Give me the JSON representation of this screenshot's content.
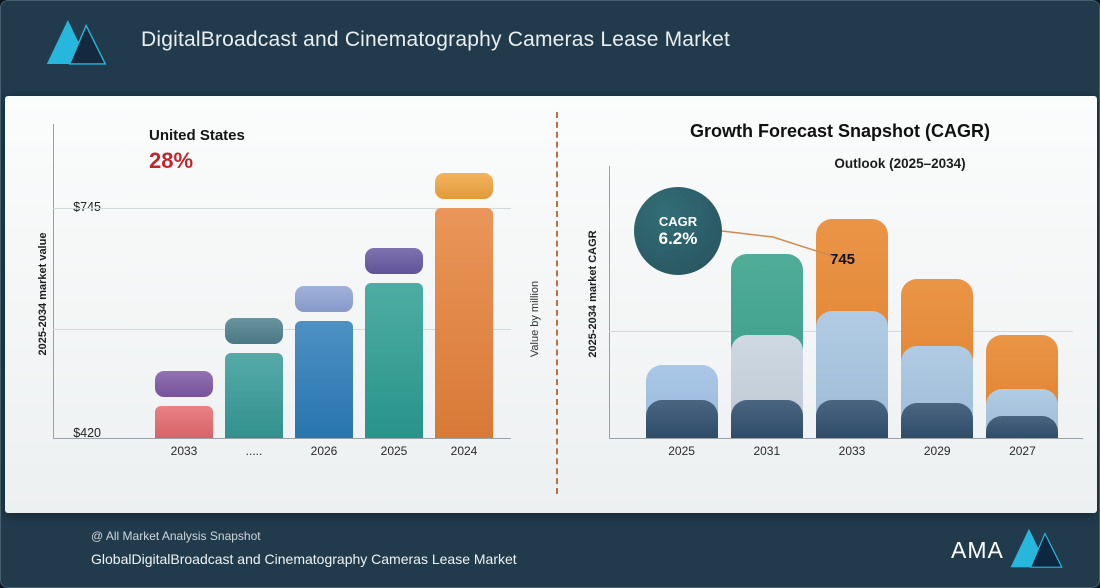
{
  "header": {
    "title": "DigitalBroadcast and Cinematography Cameras Lease Market"
  },
  "left_chart": {
    "annotation_label": "United States",
    "annotation_value": "28%",
    "y_axis_label": "2025-2034 market value",
    "right_axis_label": "Value by million",
    "tick_top": "$745",
    "tick_bottom": "$420"
  },
  "right_chart": {
    "title": "Growth Forecast Snapshot (CAGR)",
    "subtitle": "Outlook (2025–2034)",
    "y_axis_label": "2025-2034 market CAGR",
    "badge_label": "CAGR",
    "badge_value": "6.2%"
  },
  "footer": {
    "note": "@ All Market Analysis Snapshot",
    "title": "GlobalDigitalBroadcast and Cinematography Cameras Lease Market",
    "brand": "AMA"
  },
  "icons": {
    "header_logo": "ama-logo",
    "footer_logo": "ama-logo"
  },
  "colors": {
    "background": "#213b4d",
    "panel": "#f3f5f6",
    "accent_red": "#c0272d",
    "badge_teal": "#2a5a63",
    "divider_orange": "#c0703f",
    "logo_cyan": "#27b7dc",
    "logo_navy": "#13293f"
  },
  "chart_data": [
    {
      "type": "bar",
      "title": "United States",
      "annotation": "28%",
      "ylabel": "2025-2034 market value",
      "ylabel_right": "Value by million",
      "ylim": [
        420,
        812
      ],
      "yticks": [
        420,
        745
      ],
      "ytick_labels": [
        "$420",
        "$745"
      ],
      "categories": [
        "2033",
        ".....",
        "2026",
        "2025",
        "2024"
      ],
      "values": [
        465,
        540,
        585,
        640,
        745
      ],
      "bar_colors": [
        "#e4696e",
        "#359a97",
        "#2b7cb9",
        "#2b9d92",
        "#e6813a"
      ],
      "cap_colors": [
        "#7e57a5",
        "#4e7f8c",
        "#8fa3d4",
        "#6658a0",
        "#f0a43e"
      ],
      "grid": true,
      "legend_position": "none"
    },
    {
      "type": "stacked-bar",
      "title": "Growth Forecast Snapshot (CAGR)",
      "subtitle": "Outlook (2025–2034)",
      "ylabel": "2025-2034 market CAGR",
      "cagr_label": "CAGR",
      "cagr_value": "6.2%",
      "unit": "percent of plot height, segments bottom to top",
      "categories": [
        "2025",
        "2031",
        "2033",
        "2029",
        "2027"
      ],
      "bars": [
        {
          "category": "2025",
          "segments": [
            [
              "#31506f",
              14
            ],
            [
              "#9fc0e4",
              13
            ]
          ]
        },
        {
          "category": "2031",
          "segments": [
            [
              "#31506f",
              14
            ],
            [
              "#c8d3df",
              24
            ],
            [
              "#37a18a",
              30
            ]
          ]
        },
        {
          "category": "2033",
          "segments": [
            [
              "#31506f",
              14
            ],
            [
              "#a6c4e0",
              33
            ],
            [
              "#e8862e",
              34
            ]
          ],
          "label": "745"
        },
        {
          "category": "2029",
          "segments": [
            [
              "#31506f",
              13
            ],
            [
              "#a6c4e0",
              21
            ],
            [
              "#e8862e",
              25
            ]
          ]
        },
        {
          "category": "2027",
          "segments": [
            [
              "#31506f",
              8
            ],
            [
              "#a6c4e0",
              10
            ],
            [
              "#e8862e",
              20
            ]
          ]
        }
      ]
    }
  ]
}
